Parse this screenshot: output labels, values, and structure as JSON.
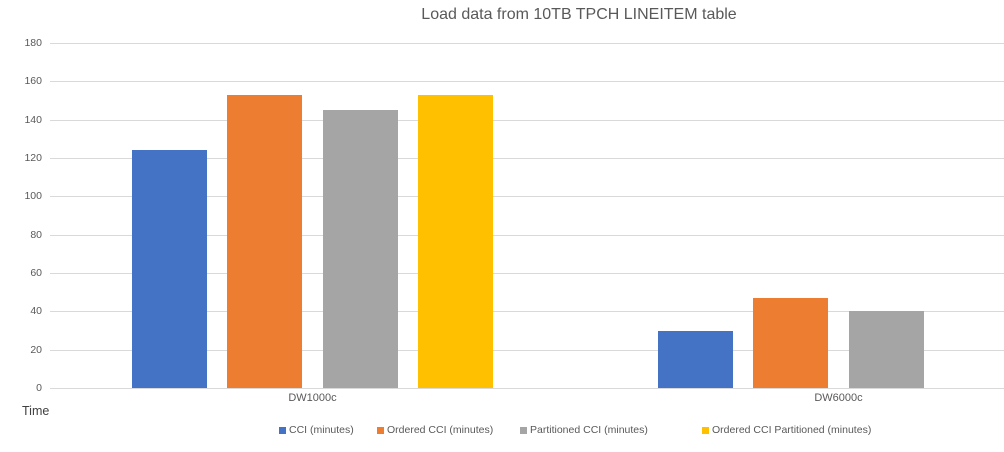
{
  "chart_data": {
    "type": "bar",
    "title": "Load data from 10TB TPCH LINEITEM table",
    "ylabel": "Time",
    "categories": [
      "DW1000c",
      "DW6000c"
    ],
    "series": [
      {
        "name": "CCI (minutes)",
        "color": "#4472C4",
        "values": [
          124,
          30
        ]
      },
      {
        "name": "Ordered CCI (minutes)",
        "color": "#ED7D31",
        "values": [
          153,
          47
        ]
      },
      {
        "name": "Partitioned CCI (minutes)",
        "color": "#A5A5A5",
        "values": [
          145,
          40
        ]
      },
      {
        "name": "Ordered CCI Partitioned (minutes)",
        "color": "#FFC000",
        "values": [
          153,
          null
        ]
      }
    ],
    "ylim": [
      0,
      180
    ],
    "ytick_step": 20,
    "ytick_labels": [
      "0",
      "20",
      "40",
      "60",
      "80",
      "100",
      "120",
      "140",
      "160",
      "180"
    ],
    "grid": true,
    "legend_position": "bottom",
    "gridline_color": "#D9D9D9",
    "text_color": "#595959"
  }
}
